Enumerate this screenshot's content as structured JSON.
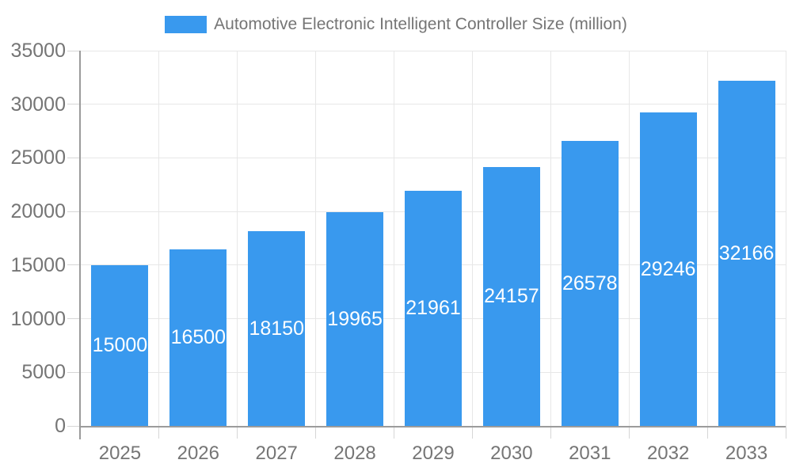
{
  "chart_data": {
    "type": "bar",
    "title": "",
    "categories": [
      "2025",
      "2026",
      "2027",
      "2028",
      "2029",
      "2030",
      "2031",
      "2032",
      "2033"
    ],
    "series": [
      {
        "name": "Automotive Electronic Intelligent Controller Size (million)",
        "color": "#3999EE",
        "values": [
          15000,
          16500,
          18150,
          19965,
          21961,
          24157,
          26578,
          29246,
          32166
        ]
      }
    ],
    "value_labels": {
      "position": "inside-center",
      "color": "#ffffff"
    },
    "xlabel": "",
    "ylabel": "",
    "ylim": [
      0,
      35000
    ],
    "y_tick_interval": 5000,
    "y_ticks": [
      0,
      5000,
      10000,
      15000,
      20000,
      25000,
      30000,
      35000
    ],
    "grid": true,
    "legend_position": "top-center",
    "colors": {
      "bar": "#3999EE",
      "grid": "#e7e7e7",
      "tick": "#d6d6d6",
      "axis": "#9b9b9b",
      "text": "#757575",
      "value_label": "#ffffff",
      "background": "#ffffff"
    }
  }
}
